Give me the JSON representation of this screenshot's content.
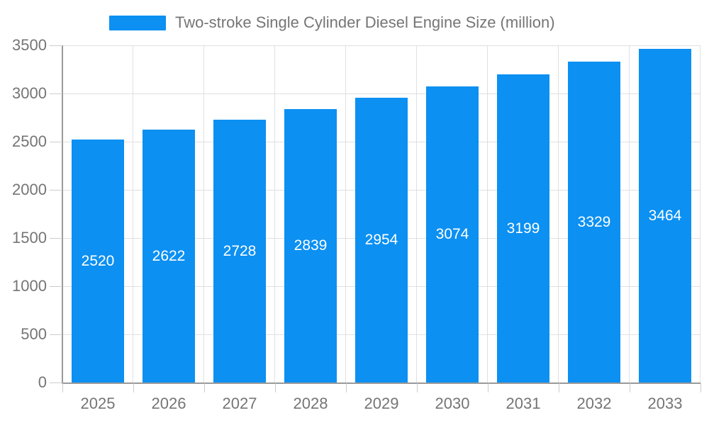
{
  "chart_data": {
    "type": "bar",
    "title": "Two-stroke Single Cylinder Diesel Engine Size (million)",
    "legend_entries": [
      "Two-stroke Single Cylinder Diesel Engine Size (million)"
    ],
    "legend_position": "top",
    "categories": [
      "2025",
      "2026",
      "2027",
      "2028",
      "2029",
      "2030",
      "2031",
      "2032",
      "2033"
    ],
    "values": [
      2520,
      2622,
      2728,
      2839,
      2954,
      3074,
      3199,
      3329,
      3464
    ],
    "value_labels_shown": true,
    "value_label_position": "inside-center",
    "xlabel": "",
    "ylabel": "",
    "ylim": [
      0,
      3500
    ],
    "yticks": [
      0,
      500,
      1000,
      1500,
      2000,
      2500,
      3000,
      3500
    ],
    "grid": true,
    "colors": {
      "bar": "#0c90f2",
      "value_label": "#ffffff",
      "grid_line": "#e0e0e0",
      "axis_line": "#999999",
      "tick": "#cccccc",
      "text": "#757575",
      "background": "#ffffff"
    }
  }
}
